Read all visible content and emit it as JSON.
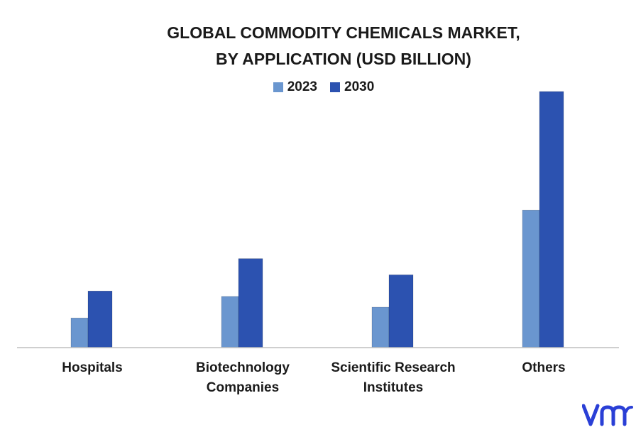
{
  "chart_data": {
    "type": "bar",
    "title_lines": [
      "GLOBAL COMMODITY CHEMICALS MARKET,",
      "BY APPLICATION (USD BILLION)"
    ],
    "categories": [
      [
        "Hospitals"
      ],
      [
        "Biotechnology",
        "Companies"
      ],
      [
        "Scientific Research",
        "Institutes"
      ],
      [
        "Others"
      ]
    ],
    "series": [
      {
        "name": "2023",
        "color": "#6a96cf",
        "values": [
          1.1,
          1.9,
          1.5,
          5.1
        ]
      },
      {
        "name": "2030",
        "color": "#2c52b0",
        "values": [
          2.1,
          3.3,
          2.7,
          9.5
        ]
      }
    ],
    "ylim": [
      0,
      10
    ],
    "legend_position": "top-center",
    "grid": false,
    "axis_color": "#bfbfbf"
  },
  "logo": {
    "name": "vmr-logo-icon",
    "color": "#2a3fd6"
  }
}
